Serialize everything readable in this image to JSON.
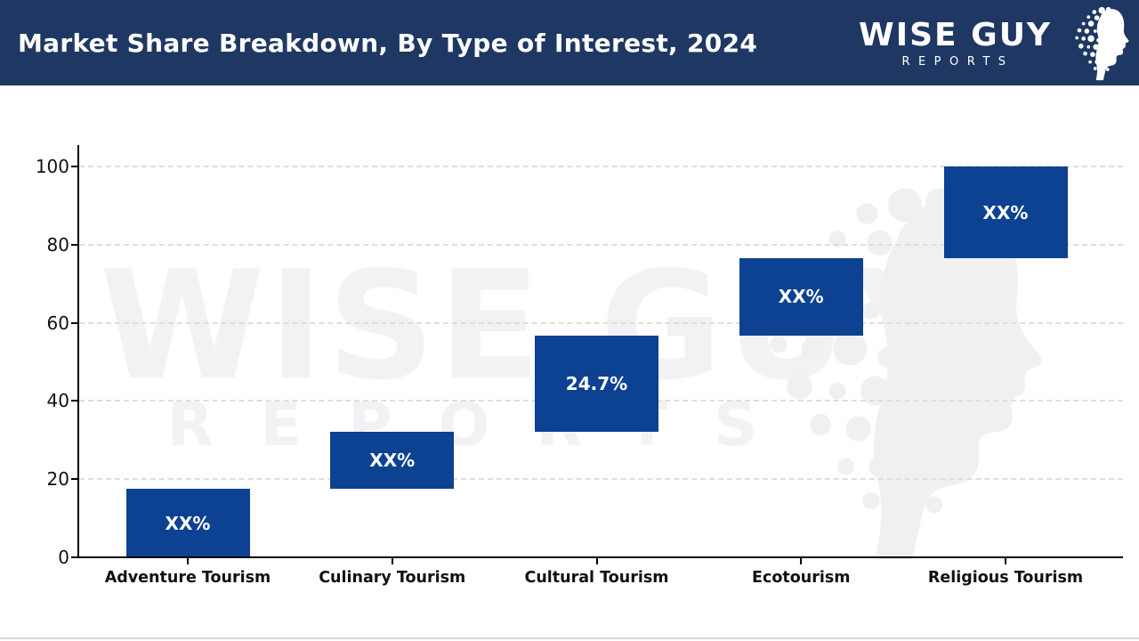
{
  "header": {
    "title": "Market Share Breakdown, By Type of Interest, 2024",
    "brand": {
      "line1": "WISE GUY",
      "line2": "REPORTS"
    }
  },
  "watermark": {
    "line1": "WISE GUY",
    "line2": "REPORTS"
  },
  "colors": {
    "header_bg": "#1f3763",
    "bar": "#0d4191",
    "bar_label": "#ffffff",
    "grid": "#dedede",
    "axis": "#000000",
    "watermark": "#f2f2f4"
  },
  "chart_data": {
    "type": "waterfall",
    "title": "Market Share Breakdown, By Type of Interest, 2024",
    "categories": [
      "Adventure Tourism",
      "Culinary Tourism",
      "Cultural Tourism",
      "Ecotourism",
      "Religious Tourism"
    ],
    "segments": [
      {
        "category": "Adventure Tourism",
        "start": 0,
        "end": 17.5,
        "label": "XX%"
      },
      {
        "category": "Culinary Tourism",
        "start": 17.5,
        "end": 32.1,
        "label": "XX%"
      },
      {
        "category": "Cultural Tourism",
        "start": 32.1,
        "end": 56.8,
        "label": "24.7%",
        "value": 24.7
      },
      {
        "category": "Ecotourism",
        "start": 56.8,
        "end": 76.5,
        "label": "XX%"
      },
      {
        "category": "Religious Tourism",
        "start": 76.5,
        "end": 100,
        "label": "XX%"
      }
    ],
    "y_ticks": [
      0,
      20,
      40,
      60,
      80,
      100
    ],
    "ylim": [
      0,
      105.5
    ],
    "grid": "horizontal-dashed",
    "legend": "none",
    "bar_color": "#0d4191",
    "label_color": "#ffffff"
  }
}
